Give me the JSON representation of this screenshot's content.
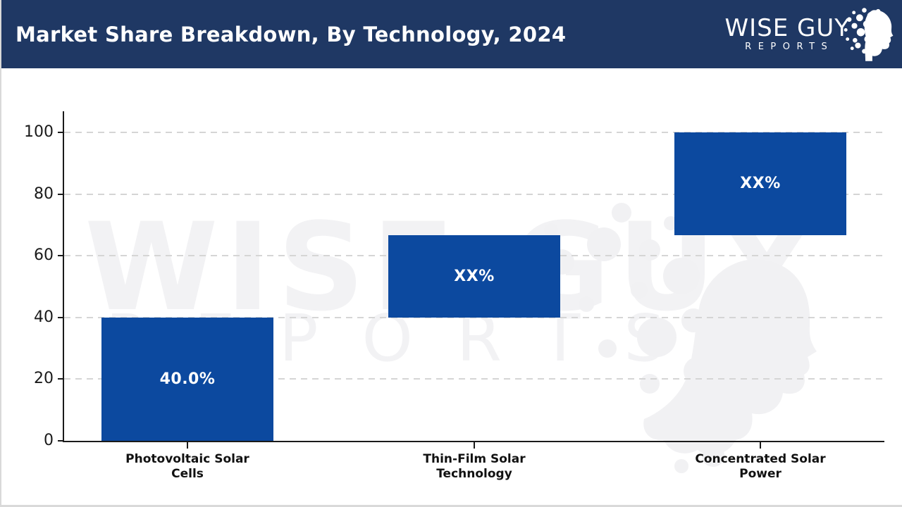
{
  "header": {
    "title": "Market Share Breakdown, By Technology, 2024",
    "bg_color": "#1f3864",
    "logo": {
      "line1": "WISE GUY",
      "line2": "REPORTS",
      "face_icon": "dotted-head-profile"
    }
  },
  "watermark": {
    "line1": "WISE GUY",
    "line2": "REPORTS",
    "face_icon": "dotted-head-profile",
    "color": "#f2f2f4"
  },
  "chart_data": {
    "type": "bar",
    "subtype": "waterfall",
    "title": "Market Share Breakdown, By Technology, 2024",
    "categories": [
      "Photovoltaic Solar Cells",
      "Thin-Film Solar Technology",
      "Concentrated Solar Power"
    ],
    "category_lines": [
      [
        "Photovoltaic Solar",
        "Cells"
      ],
      [
        "Thin-Film Solar",
        "Technology"
      ],
      [
        "Concentrated Solar",
        "Power"
      ]
    ],
    "segments": [
      {
        "category": "Photovoltaic Solar Cells",
        "start": 0,
        "end": 40,
        "label": "40.0%"
      },
      {
        "category": "Thin-Film Solar Technology",
        "start": 40,
        "end": 66.7,
        "label": "XX%"
      },
      {
        "category": "Concentrated Solar Power",
        "start": 66.7,
        "end": 100,
        "label": "XX%"
      }
    ],
    "yticks": [
      0,
      20,
      40,
      60,
      80,
      100
    ],
    "ylim": [
      0,
      106.5
    ],
    "xlabel": "",
    "ylabel": "",
    "grid": "horizontal-dashed",
    "legend": "none",
    "bar_color": "#0c499f",
    "bar_label_color": "#ffffff",
    "axis_color": "#1a1a1a",
    "grid_color": "#d5d5d5"
  }
}
